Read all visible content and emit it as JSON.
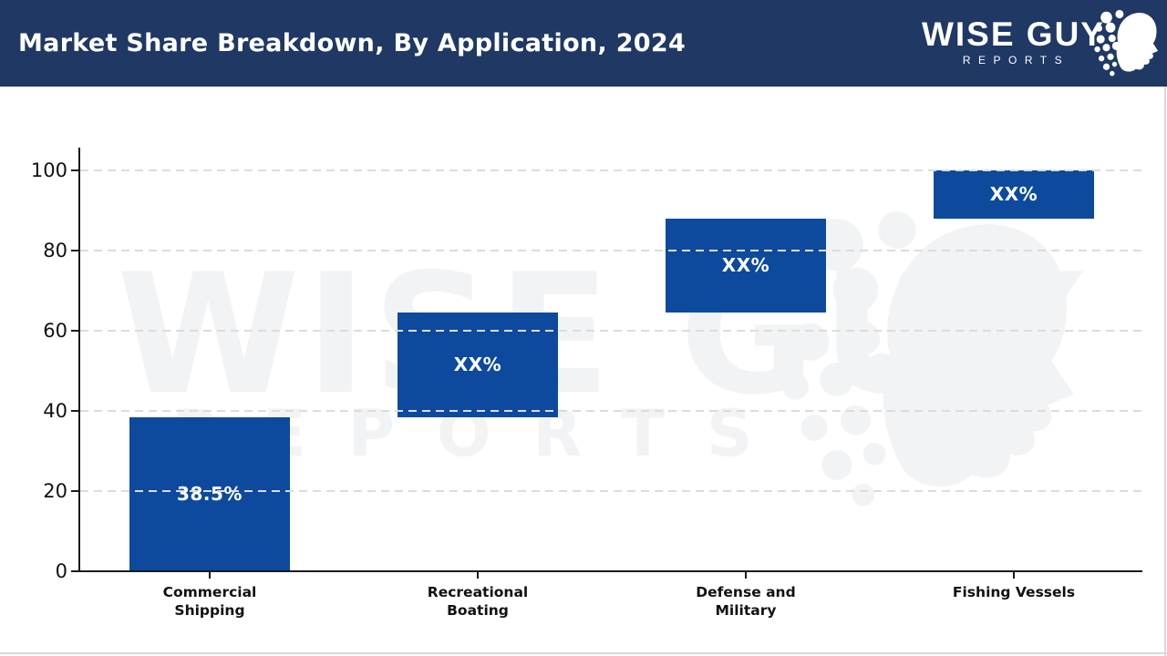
{
  "header": {
    "title": "Market Share Breakdown, By Application, 2024",
    "logo": {
      "line1": "WISE GUY",
      "line2": "REPORTS"
    }
  },
  "watermark": {
    "line1": "WISE GUY",
    "line2": "REPORTS"
  },
  "colors": {
    "header_bg": "#1f3864",
    "bar_color": "#0d4a9e",
    "grid_color": "#dcdcdc",
    "axis_color": "#1a1a1a",
    "watermark_color": "#f2f3f5",
    "bar_label_color": "#ffffff",
    "title_color": "#ffffff"
  },
  "chart_data": {
    "type": "bar",
    "subtype": "floating_waterfall_bars",
    "title": "Market Share Breakdown, By Application, 2024",
    "categories": [
      "Commercial Shipping",
      "Recreational Boating",
      "Defense and Military",
      "Fishing Vessels"
    ],
    "category_lines": [
      [
        "Commercial",
        "Shipping"
      ],
      [
        "Recreational",
        "Boating"
      ],
      [
        "Defense and",
        "Military"
      ],
      [
        "Fishing Vessels"
      ]
    ],
    "segments": [
      {
        "category": "Commercial Shipping",
        "start": 0,
        "end": 38.5,
        "label": "38.5%"
      },
      {
        "category": "Recreational Boating",
        "start": 38.5,
        "end": 64.5,
        "label": "XX%"
      },
      {
        "category": "Defense and Military",
        "start": 64.5,
        "end": 88,
        "label": "XX%"
      },
      {
        "category": "Fishing Vessels",
        "start": 88,
        "end": 100,
        "label": "XX%"
      }
    ],
    "values_span_per_category": [
      38.5,
      26,
      23.5,
      12
    ],
    "bar_labels": [
      "38.5%",
      "XX%",
      "XX%",
      "XX%"
    ],
    "yticks": [
      0,
      20,
      40,
      60,
      80,
      100
    ],
    "ylim": [
      0,
      106
    ],
    "xlabel": "",
    "ylabel": "",
    "grid": "horizontal dashed lines drawn over bars",
    "legend": "none"
  }
}
